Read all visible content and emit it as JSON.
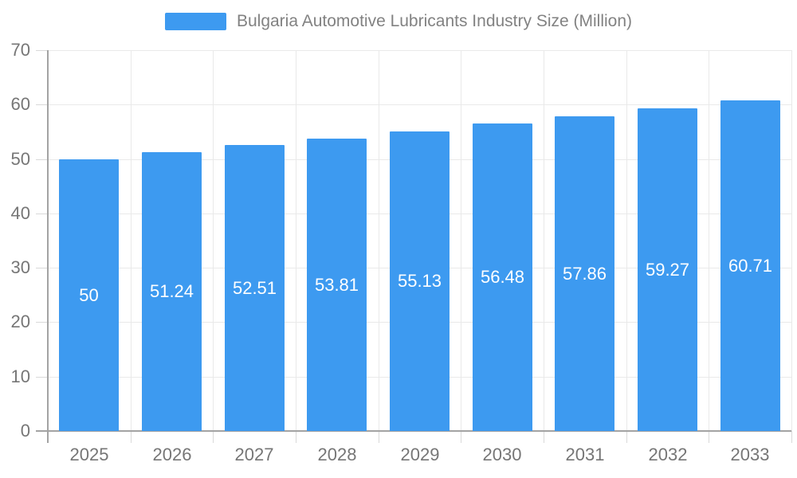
{
  "chart_data": {
    "type": "bar",
    "title": "Bulgaria Automotive Lubricants Industry Size (Million)",
    "legend_position": "top",
    "categories": [
      "2025",
      "2026",
      "2027",
      "2028",
      "2029",
      "2030",
      "2031",
      "2032",
      "2033"
    ],
    "values": [
      50,
      51.24,
      52.51,
      53.81,
      55.13,
      56.48,
      57.86,
      59.27,
      60.71
    ],
    "value_labels": [
      "50",
      "51.24",
      "52.51",
      "53.81",
      "55.13",
      "56.48",
      "57.86",
      "59.27",
      "60.71"
    ],
    "xlabel": "",
    "ylabel": "",
    "ylim": [
      0,
      70
    ],
    "yticks": [
      0,
      10,
      20,
      30,
      40,
      50,
      60,
      70
    ],
    "grid": true,
    "colors": {
      "bar": "#3d9af0",
      "axis_line": "#a3a3a3",
      "grid_line": "#e9e9e9",
      "tick": "#d9d9d9",
      "axis_text": "#767676",
      "legend_text": "#828282",
      "value_label_text": "#ffffff"
    }
  }
}
